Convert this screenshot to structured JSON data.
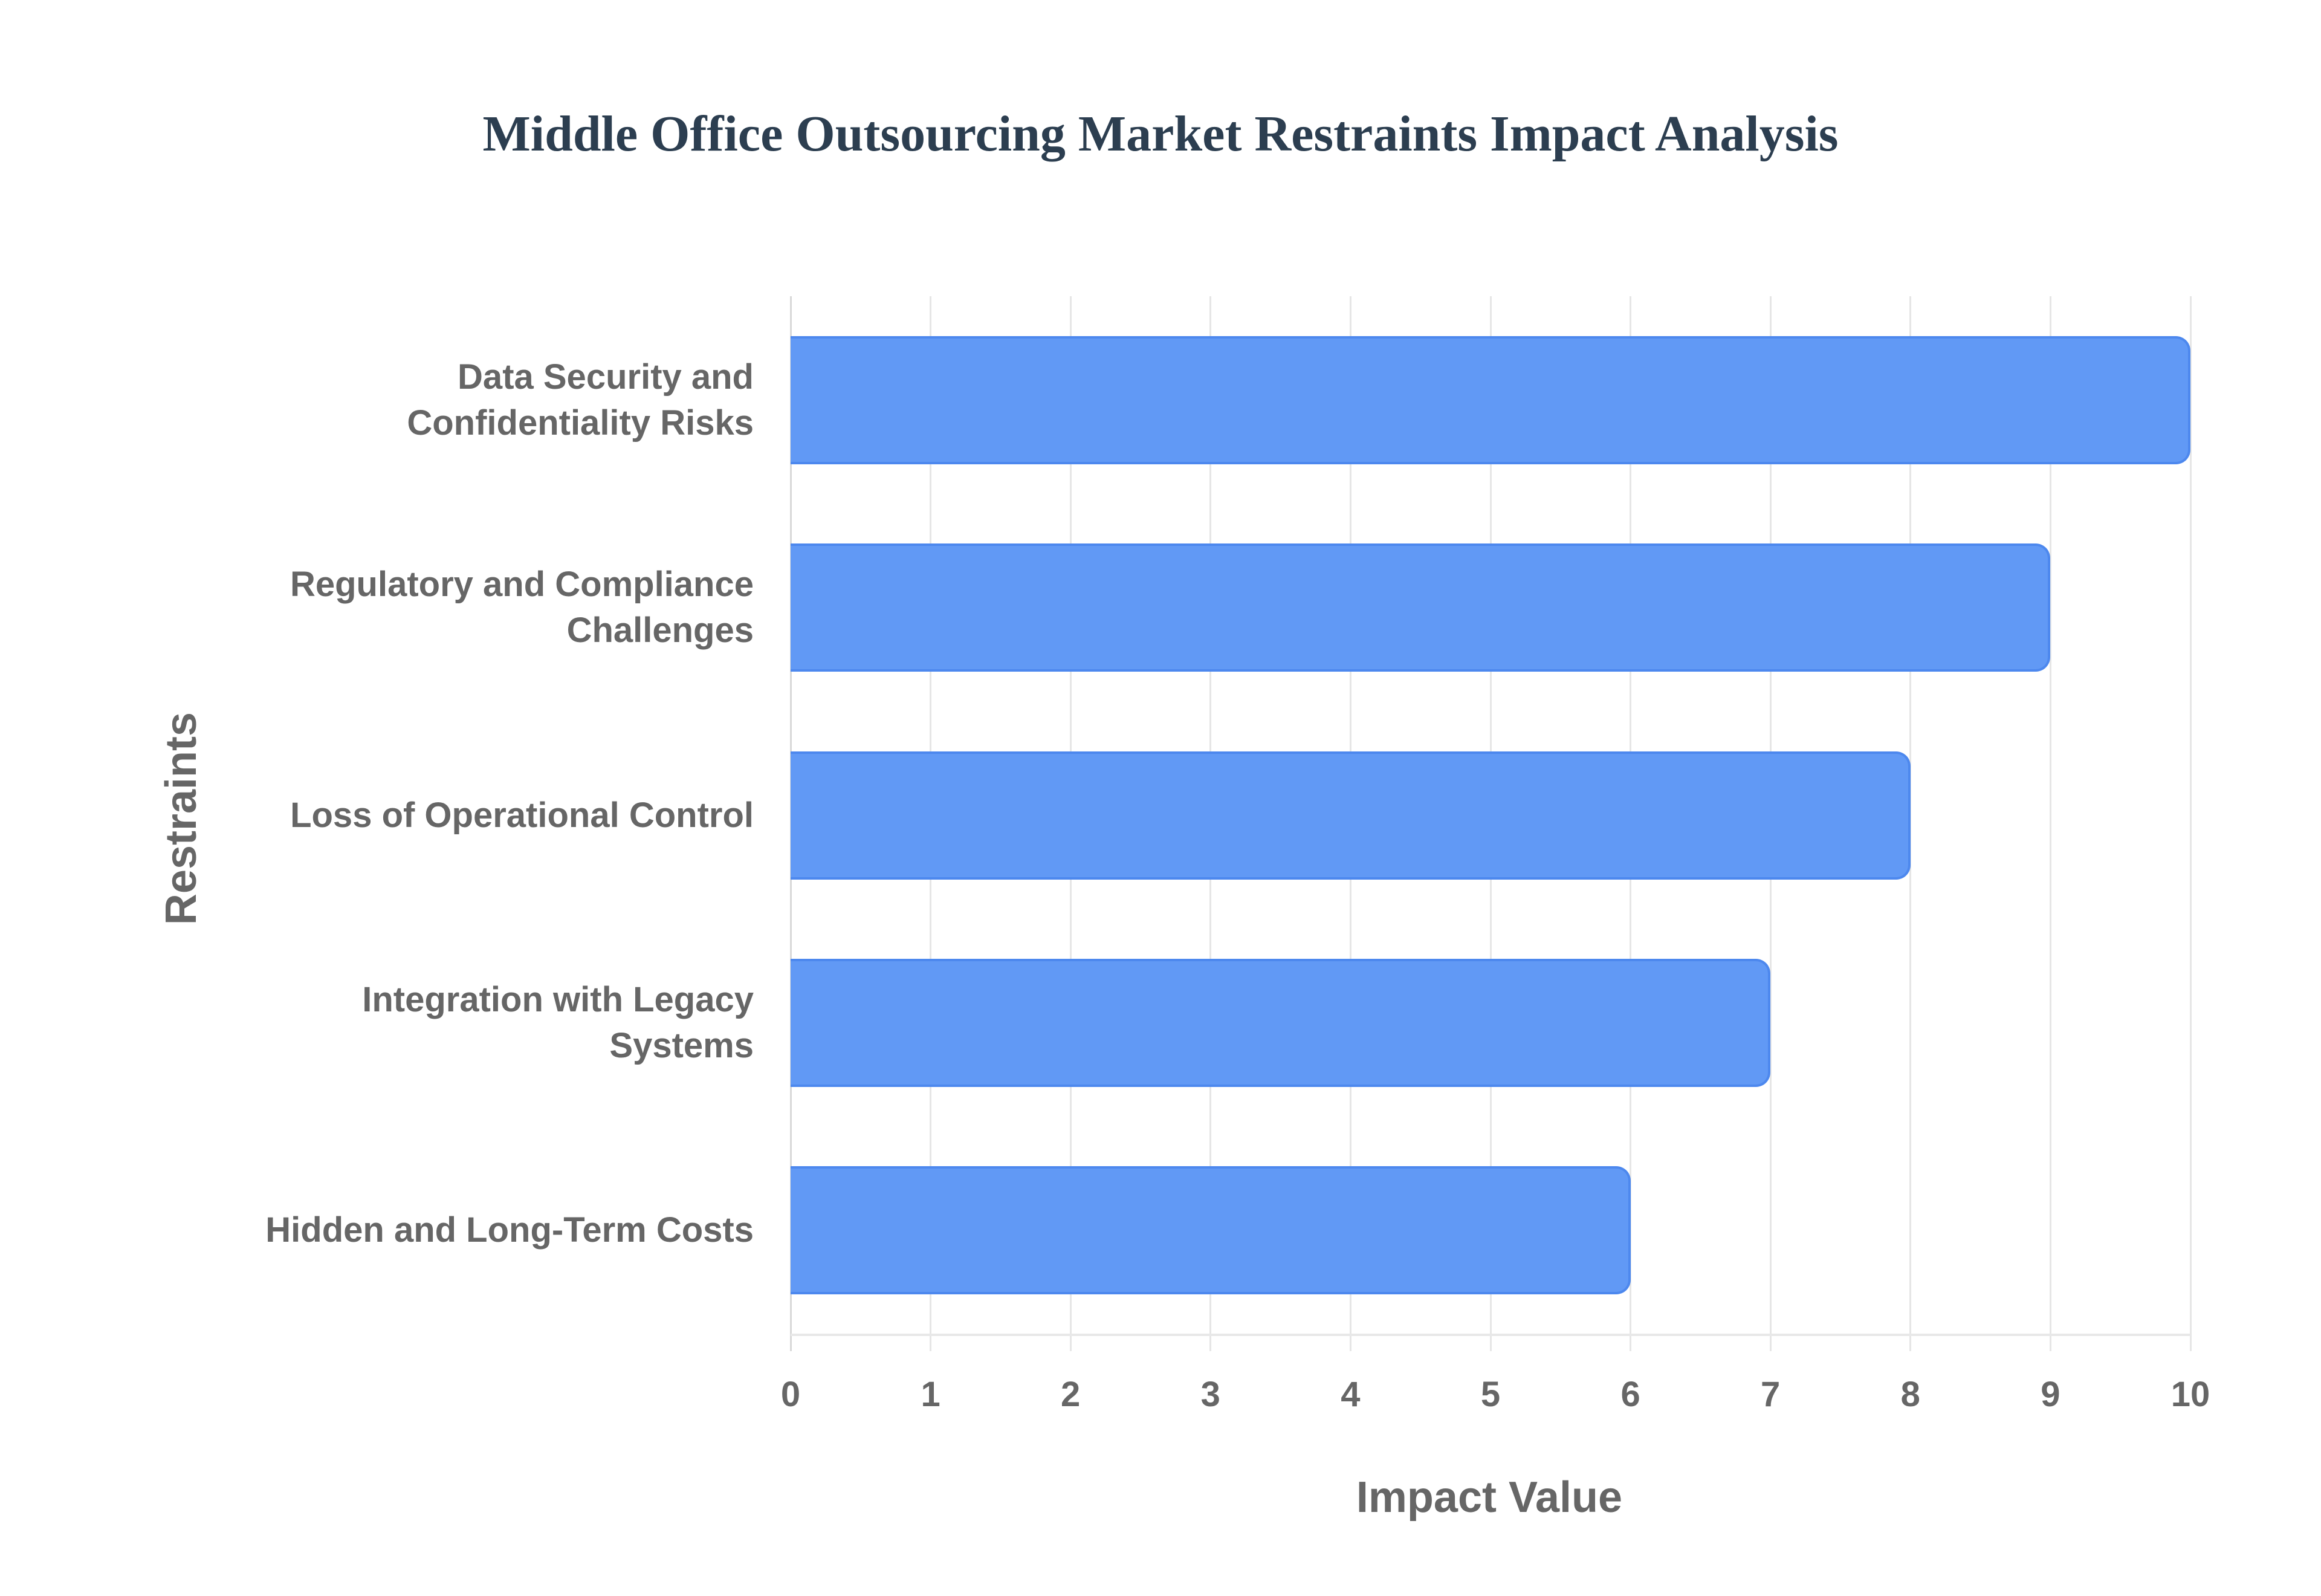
{
  "chart": {
    "title": "Middle Office Outsourcing Market Restraints Impact Analysis",
    "xlabel": "Impact Value",
    "ylabel": "Restraints",
    "x_ticks": [
      "0",
      "1",
      "2",
      "3",
      "4",
      "5",
      "6",
      "7",
      "8",
      "9",
      "10"
    ],
    "categories": [
      {
        "lines": [
          "Data Security and",
          "Confidentiality Risks"
        ]
      },
      {
        "lines": [
          "Regulatory and Compliance",
          "Challenges"
        ]
      },
      {
        "lines": [
          "Loss of Operational Control"
        ]
      },
      {
        "lines": [
          "Integration with Legacy",
          "Systems"
        ]
      },
      {
        "lines": [
          "Hidden and Long-Term Costs"
        ]
      }
    ],
    "colors": {
      "bar_fill": "#6199f5",
      "bar_border": "#4d88ee",
      "title": "#2c3e50",
      "axis_text": "#666666",
      "grid": "#e6e6e6"
    }
  },
  "chart_data": {
    "type": "bar",
    "orientation": "horizontal",
    "title": "Middle Office Outsourcing Market Restraints Impact Analysis",
    "xlabel": "Impact Value",
    "ylabel": "Restraints",
    "categories": [
      "Data Security and Confidentiality Risks",
      "Regulatory and Compliance Challenges",
      "Loss of Operational Control",
      "Integration with Legacy Systems",
      "Hidden and Long-Term Costs"
    ],
    "values": [
      10,
      9,
      8,
      7,
      6
    ],
    "xlim": [
      0,
      10
    ],
    "x_ticks": [
      0,
      1,
      2,
      3,
      4,
      5,
      6,
      7,
      8,
      9,
      10
    ],
    "grid": true,
    "legend": null
  }
}
